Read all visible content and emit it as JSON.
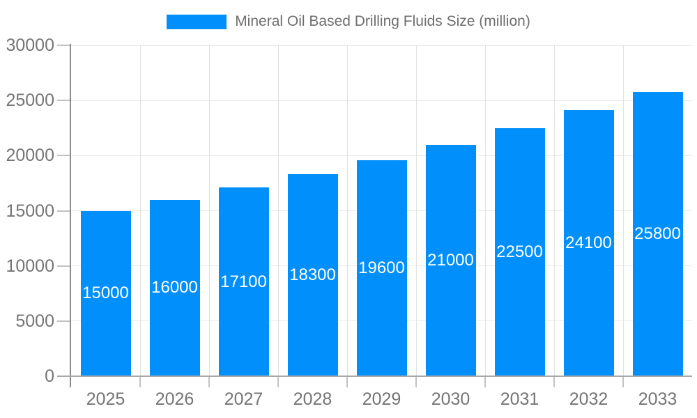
{
  "legend": {
    "label": "Mineral Oil Based Drilling Fluids Size (million)"
  },
  "chart_data": {
    "type": "bar",
    "title": "Mineral Oil Based Drilling Fluids Size (million)",
    "categories": [
      "2025",
      "2026",
      "2027",
      "2028",
      "2029",
      "2030",
      "2031",
      "2032",
      "2033"
    ],
    "values": [
      15000,
      16000,
      17100,
      18300,
      19600,
      21000,
      22500,
      24100,
      25800
    ],
    "series": [
      {
        "name": "Mineral Oil Based Drilling Fluids Size (million)",
        "values": [
          15000,
          16000,
          17100,
          18300,
          19600,
          21000,
          22500,
          24100,
          25800
        ]
      }
    ],
    "xlabel": "",
    "ylabel": "",
    "ylim": [
      0,
      30000
    ],
    "y_ticks": [
      0,
      5000,
      10000,
      15000,
      20000,
      25000,
      30000
    ],
    "bar_value_labels_shown": true,
    "grid": true,
    "legend_position": "top",
    "colors": {
      "bar": "#008FFB",
      "bar_label": "#FFFFFF",
      "axis_text": "#757575",
      "legend_text": "#6E6E6E",
      "grid_h": "#E9E9E9",
      "grid_v": "#E2E2E2",
      "axis_line": "#8A8A8A",
      "baseline": "#A8A8A8",
      "tick": "#C2C2C2"
    }
  }
}
